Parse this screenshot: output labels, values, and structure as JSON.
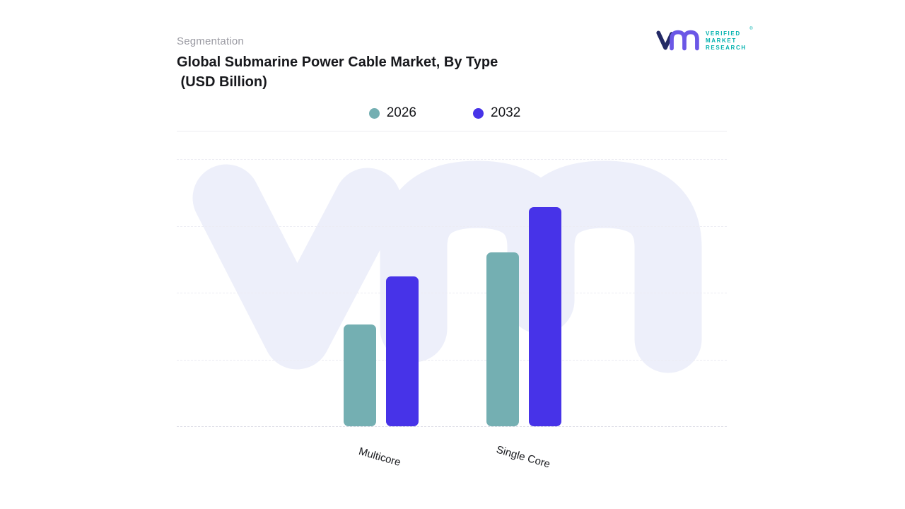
{
  "header": {
    "eyebrow": "Segmentation",
    "title_line1": "Global Submarine Power Cable Market, By Type",
    "title_line2": " (USD Billion)"
  },
  "logo": {
    "brand_line1": "VERIFIED",
    "brand_line2": "MARKET",
    "brand_line3": "RESEARCH",
    "registered_mark": "®",
    "mark_color_dark": "#232a66",
    "mark_color_purple": "#6b57e6",
    "text_color": "#00b1ae"
  },
  "chart_data": {
    "type": "bar",
    "title": "Global Submarine Power Cable Market, By Type (USD Billion)",
    "categories": [
      "Multicore",
      "Single Core"
    ],
    "series": [
      {
        "name": "2026",
        "color": "#74afb2",
        "values": [
          38,
          65
        ]
      },
      {
        "name": "2032",
        "color": "#4733e8",
        "values": [
          56,
          82
        ]
      }
    ],
    "xlabel": "",
    "ylabel": "",
    "ylim": [
      0,
      100
    ],
    "value_axis_labels_visible": false,
    "grid": "horizontal-dashed",
    "legend_position": "top-center",
    "note": "No numeric value-axis labels are shown in the figure; values are relative estimates of bar heights (percent of plot height)."
  },
  "watermark": {
    "name": "vmr-watermark",
    "color": "#edeffa"
  }
}
